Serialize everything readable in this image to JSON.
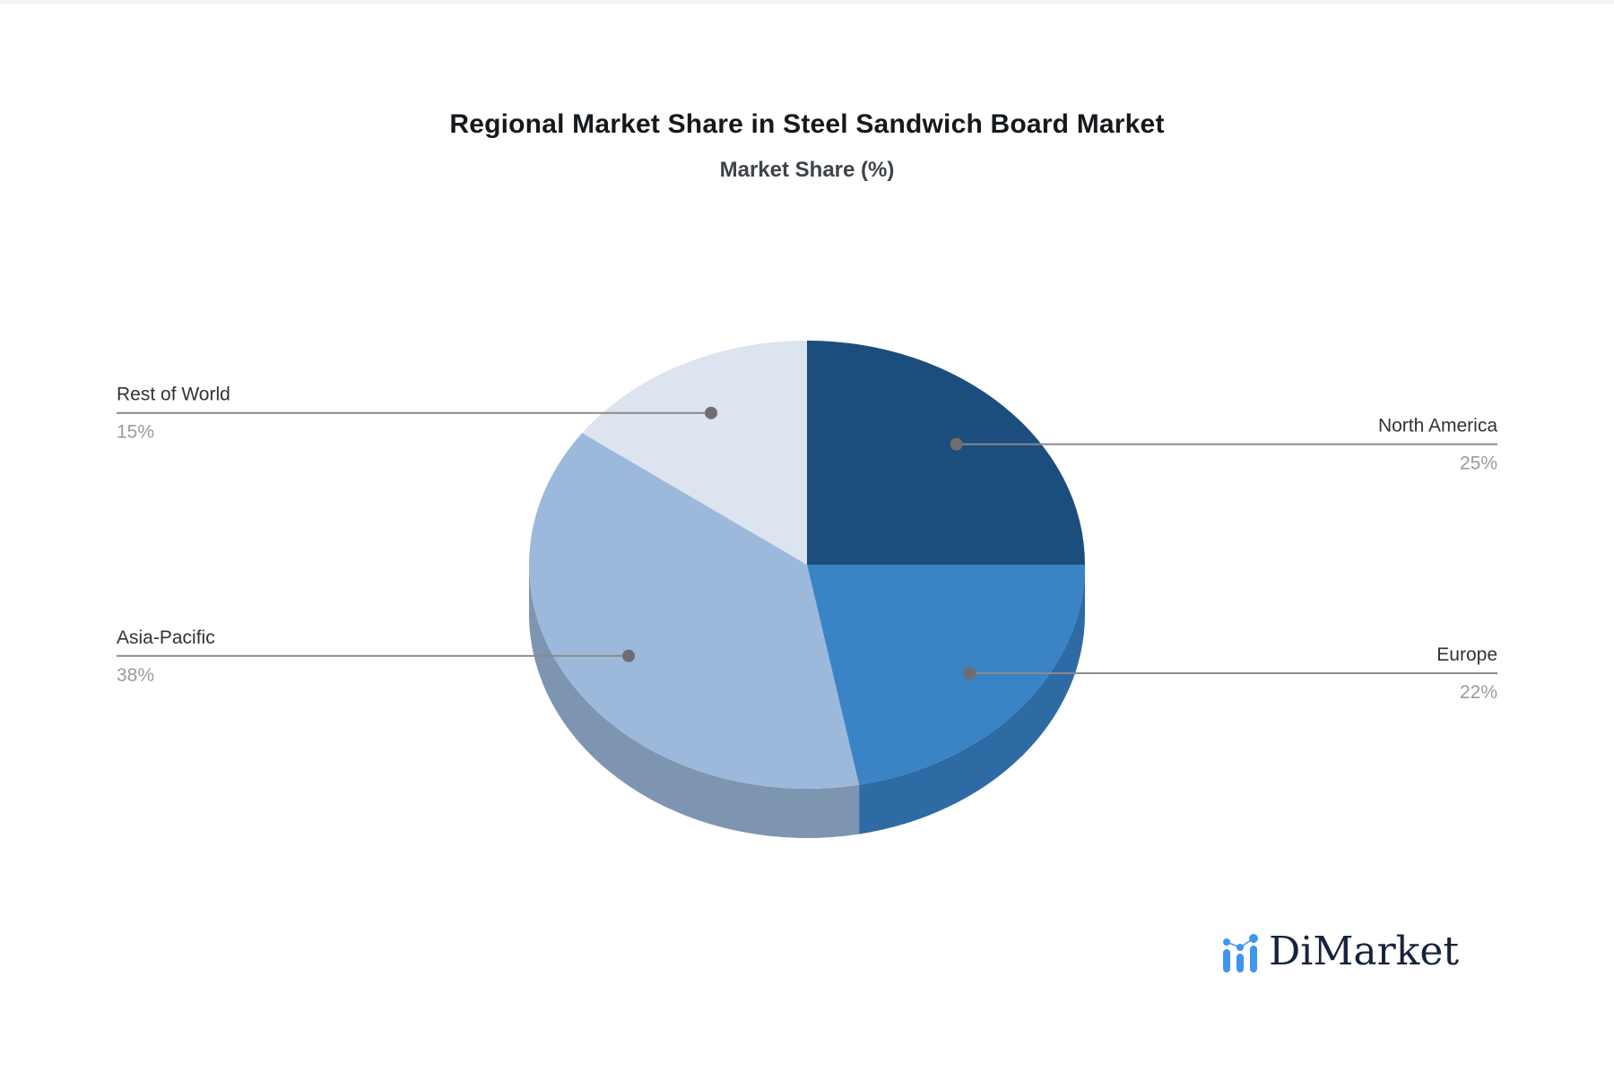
{
  "page": {
    "title": "Regional Market Share in Steel Sandwich Board Market",
    "subtitle": "Market Share (%)"
  },
  "chart_data": {
    "type": "pie",
    "style": "3d",
    "title": "Regional Market Share in Steel Sandwich Board Market",
    "subtitle": "Market Share (%)",
    "unit": "%",
    "labels": [
      "North America",
      "Europe",
      "Asia-Pacific",
      "Rest of World"
    ],
    "values": [
      25,
      22,
      38,
      15
    ],
    "display_values": [
      "25%",
      "22%",
      "38%",
      "15%"
    ],
    "colors": [
      "#1b4e7c",
      "#3a83c5",
      "#9cb9dc",
      "#dce4ef"
    ],
    "rim_colors": [
      "#143a5e",
      "#2e6ba4",
      "#7d95b1",
      "#b9c3d4"
    ],
    "start_angle_deg": 0,
    "direction": "clockwise",
    "legend_position": "callout-labels",
    "label_text_color": "#333333",
    "value_text_color": "#9b9b9b",
    "leader_line_color": "#8a8a8a"
  },
  "branding": {
    "logo_text": "DiMarket",
    "logo_icon": "bar-chart-icon",
    "logo_icon_color": "#4095f3",
    "logo_text_color": "#16233c"
  }
}
